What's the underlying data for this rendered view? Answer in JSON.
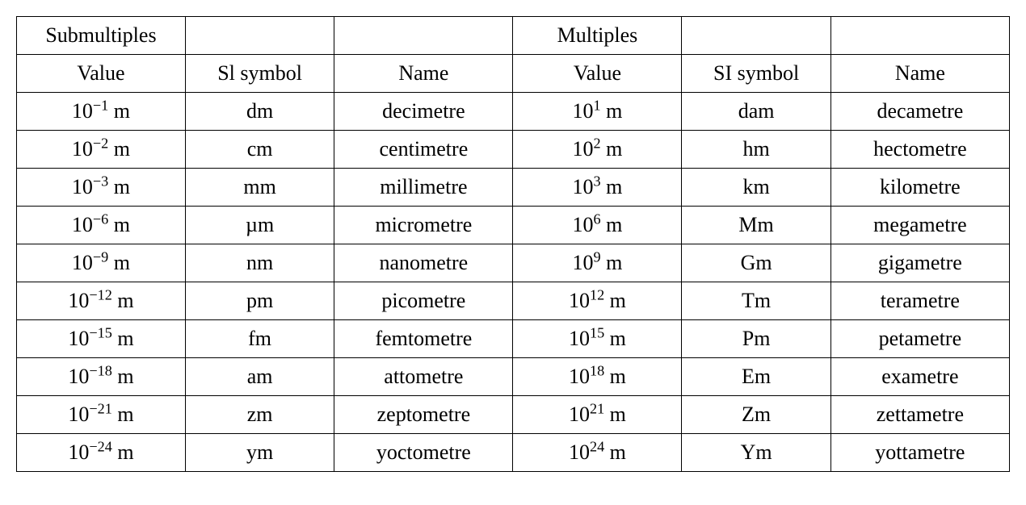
{
  "table": {
    "type": "table",
    "background_color": "#ffffff",
    "border_color": "#000000",
    "text_color": "#000000",
    "font_family": "Century Schoolbook, serif",
    "font_size_pt": 20,
    "column_count": 6,
    "column_widths_pct": [
      17,
      15,
      18,
      17,
      15,
      18
    ],
    "column_alignment": [
      "center",
      "center",
      "center",
      "center",
      "center",
      "center"
    ],
    "header_row_1": [
      "Submultiples",
      "",
      "",
      "Multiples",
      "",
      ""
    ],
    "header_row_2": [
      "Value",
      "Sl symbol",
      "Name",
      "Value",
      "SI symbol",
      "Name"
    ],
    "data_rows": [
      {
        "sub_exp": "−1",
        "sub_symbol": "dm",
        "sub_name": "decimetre",
        "mul_exp": "1",
        "mul_symbol": "dam",
        "mul_name": "decametre"
      },
      {
        "sub_exp": "−2",
        "sub_symbol": "cm",
        "sub_name": "centimetre",
        "mul_exp": "2",
        "mul_symbol": "hm",
        "mul_name": "hectometre"
      },
      {
        "sub_exp": "−3",
        "sub_symbol": "mm",
        "sub_name": "millimetre",
        "mul_exp": "3",
        "mul_symbol": "km",
        "mul_name": "kilometre"
      },
      {
        "sub_exp": "−6",
        "sub_symbol": "µm",
        "sub_name": "micrometre",
        "mul_exp": "6",
        "mul_symbol": "Mm",
        "mul_name": "megametre"
      },
      {
        "sub_exp": "−9",
        "sub_symbol": "nm",
        "sub_name": "nanometre",
        "mul_exp": "9",
        "mul_symbol": "Gm",
        "mul_name": "gigametre"
      },
      {
        "sub_exp": "−12",
        "sub_symbol": "pm",
        "sub_name": "picometre",
        "mul_exp": "12",
        "mul_symbol": "Tm",
        "mul_name": "terametre"
      },
      {
        "sub_exp": "−15",
        "sub_symbol": "fm",
        "sub_name": "femtometre",
        "mul_exp": "15",
        "mul_symbol": "Pm",
        "mul_name": "petametre"
      },
      {
        "sub_exp": "−18",
        "sub_symbol": "am",
        "sub_name": "attometre",
        "mul_exp": "18",
        "mul_symbol": "Em",
        "mul_name": "exametre"
      },
      {
        "sub_exp": "−21",
        "sub_symbol": "zm",
        "sub_name": "zeptometre",
        "mul_exp": "21",
        "mul_symbol": "Zm",
        "mul_name": "zettametre"
      },
      {
        "sub_exp": "−24",
        "sub_symbol": "ym",
        "sub_name": "yoctometre",
        "mul_exp": "24",
        "mul_symbol": "Ym",
        "mul_name": "yottametre"
      }
    ],
    "value_base": "10",
    "value_unit": " m"
  }
}
